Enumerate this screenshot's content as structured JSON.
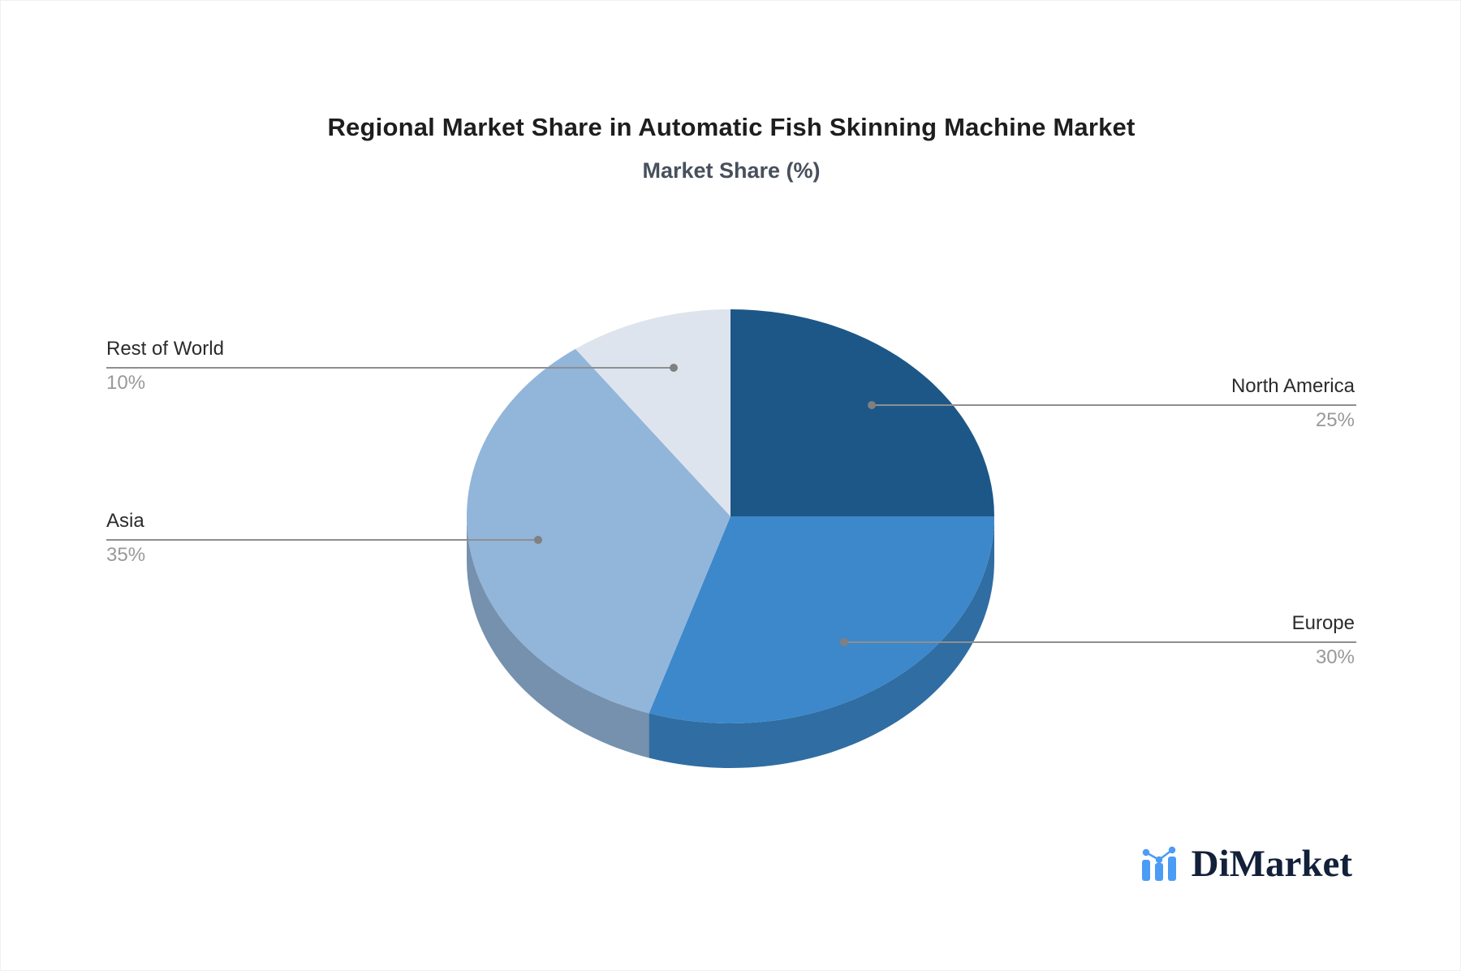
{
  "title": "Regional Market Share in Automatic Fish Skinning Machine Market",
  "subtitle": "Market Share (%)",
  "chart_data": {
    "type": "pie",
    "style": "3d",
    "title": "Regional Market Share in Automatic Fish Skinning Machine Market",
    "subtitle": "Market Share (%)",
    "unit": "%",
    "start_angle_deg": 0,
    "direction": "clockwise",
    "legend_position": "none",
    "label_style": "outside-with-leader-lines",
    "slices": [
      {
        "label": "North America",
        "value": 25,
        "display": "25%",
        "color": "#1d5787"
      },
      {
        "label": "Europe",
        "value": 30,
        "display": "30%",
        "color": "#3c88ca"
      },
      {
        "label": "Asia",
        "value": 35,
        "display": "35%",
        "color": "#92b5da"
      },
      {
        "label": "Rest of World",
        "value": 10,
        "display": "10%",
        "color": "#dee4ee"
      }
    ]
  },
  "labels": {
    "north_america": {
      "name": "North America",
      "value": "25%"
    },
    "europe": {
      "name": "Europe",
      "value": "30%"
    },
    "asia": {
      "name": "Asia",
      "value": "35%"
    },
    "rest_of_world": {
      "name": "Rest of World",
      "value": "10%"
    }
  },
  "branding": {
    "logo_text": "DiMarket",
    "logo_icon": "bar-chart-icon",
    "icon_color": "#4b9cf4",
    "text_color": "#13203a"
  },
  "colors": {
    "background": "#ffffff",
    "title_text": "#1e1e1e",
    "subtitle_text": "#47505c",
    "label_text": "#2b2b2b",
    "percent_text": "#999999",
    "leader_line": "#8f8f8f",
    "leader_dot": "#808080"
  }
}
